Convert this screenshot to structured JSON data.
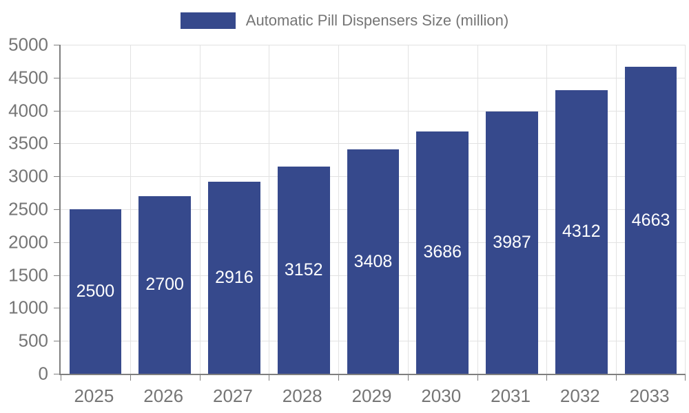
{
  "chart_data": {
    "type": "bar",
    "title": "Automatic Pill Dispensers Size (million)",
    "categories": [
      "2025",
      "2026",
      "2027",
      "2028",
      "2029",
      "2030",
      "2031",
      "2032",
      "2033"
    ],
    "values": [
      2500,
      2700,
      2916,
      3152,
      3408,
      3686,
      3987,
      4312,
      4663
    ],
    "xlabel": "",
    "ylabel": "",
    "ylim": [
      0,
      5000
    ],
    "yticks": [
      0,
      500,
      1000,
      1500,
      2000,
      2500,
      3000,
      3500,
      4000,
      4500,
      5000
    ],
    "grid": true,
    "legend_position": "top-center",
    "bar_width_fraction": 0.75,
    "value_labels_inside_bars": true,
    "colors": {
      "bar": "#36498C",
      "grid": "#E2E2E2",
      "axis": "#7E7E7E",
      "tick_label": "#757575",
      "value_label": "#FFFFFF"
    }
  }
}
